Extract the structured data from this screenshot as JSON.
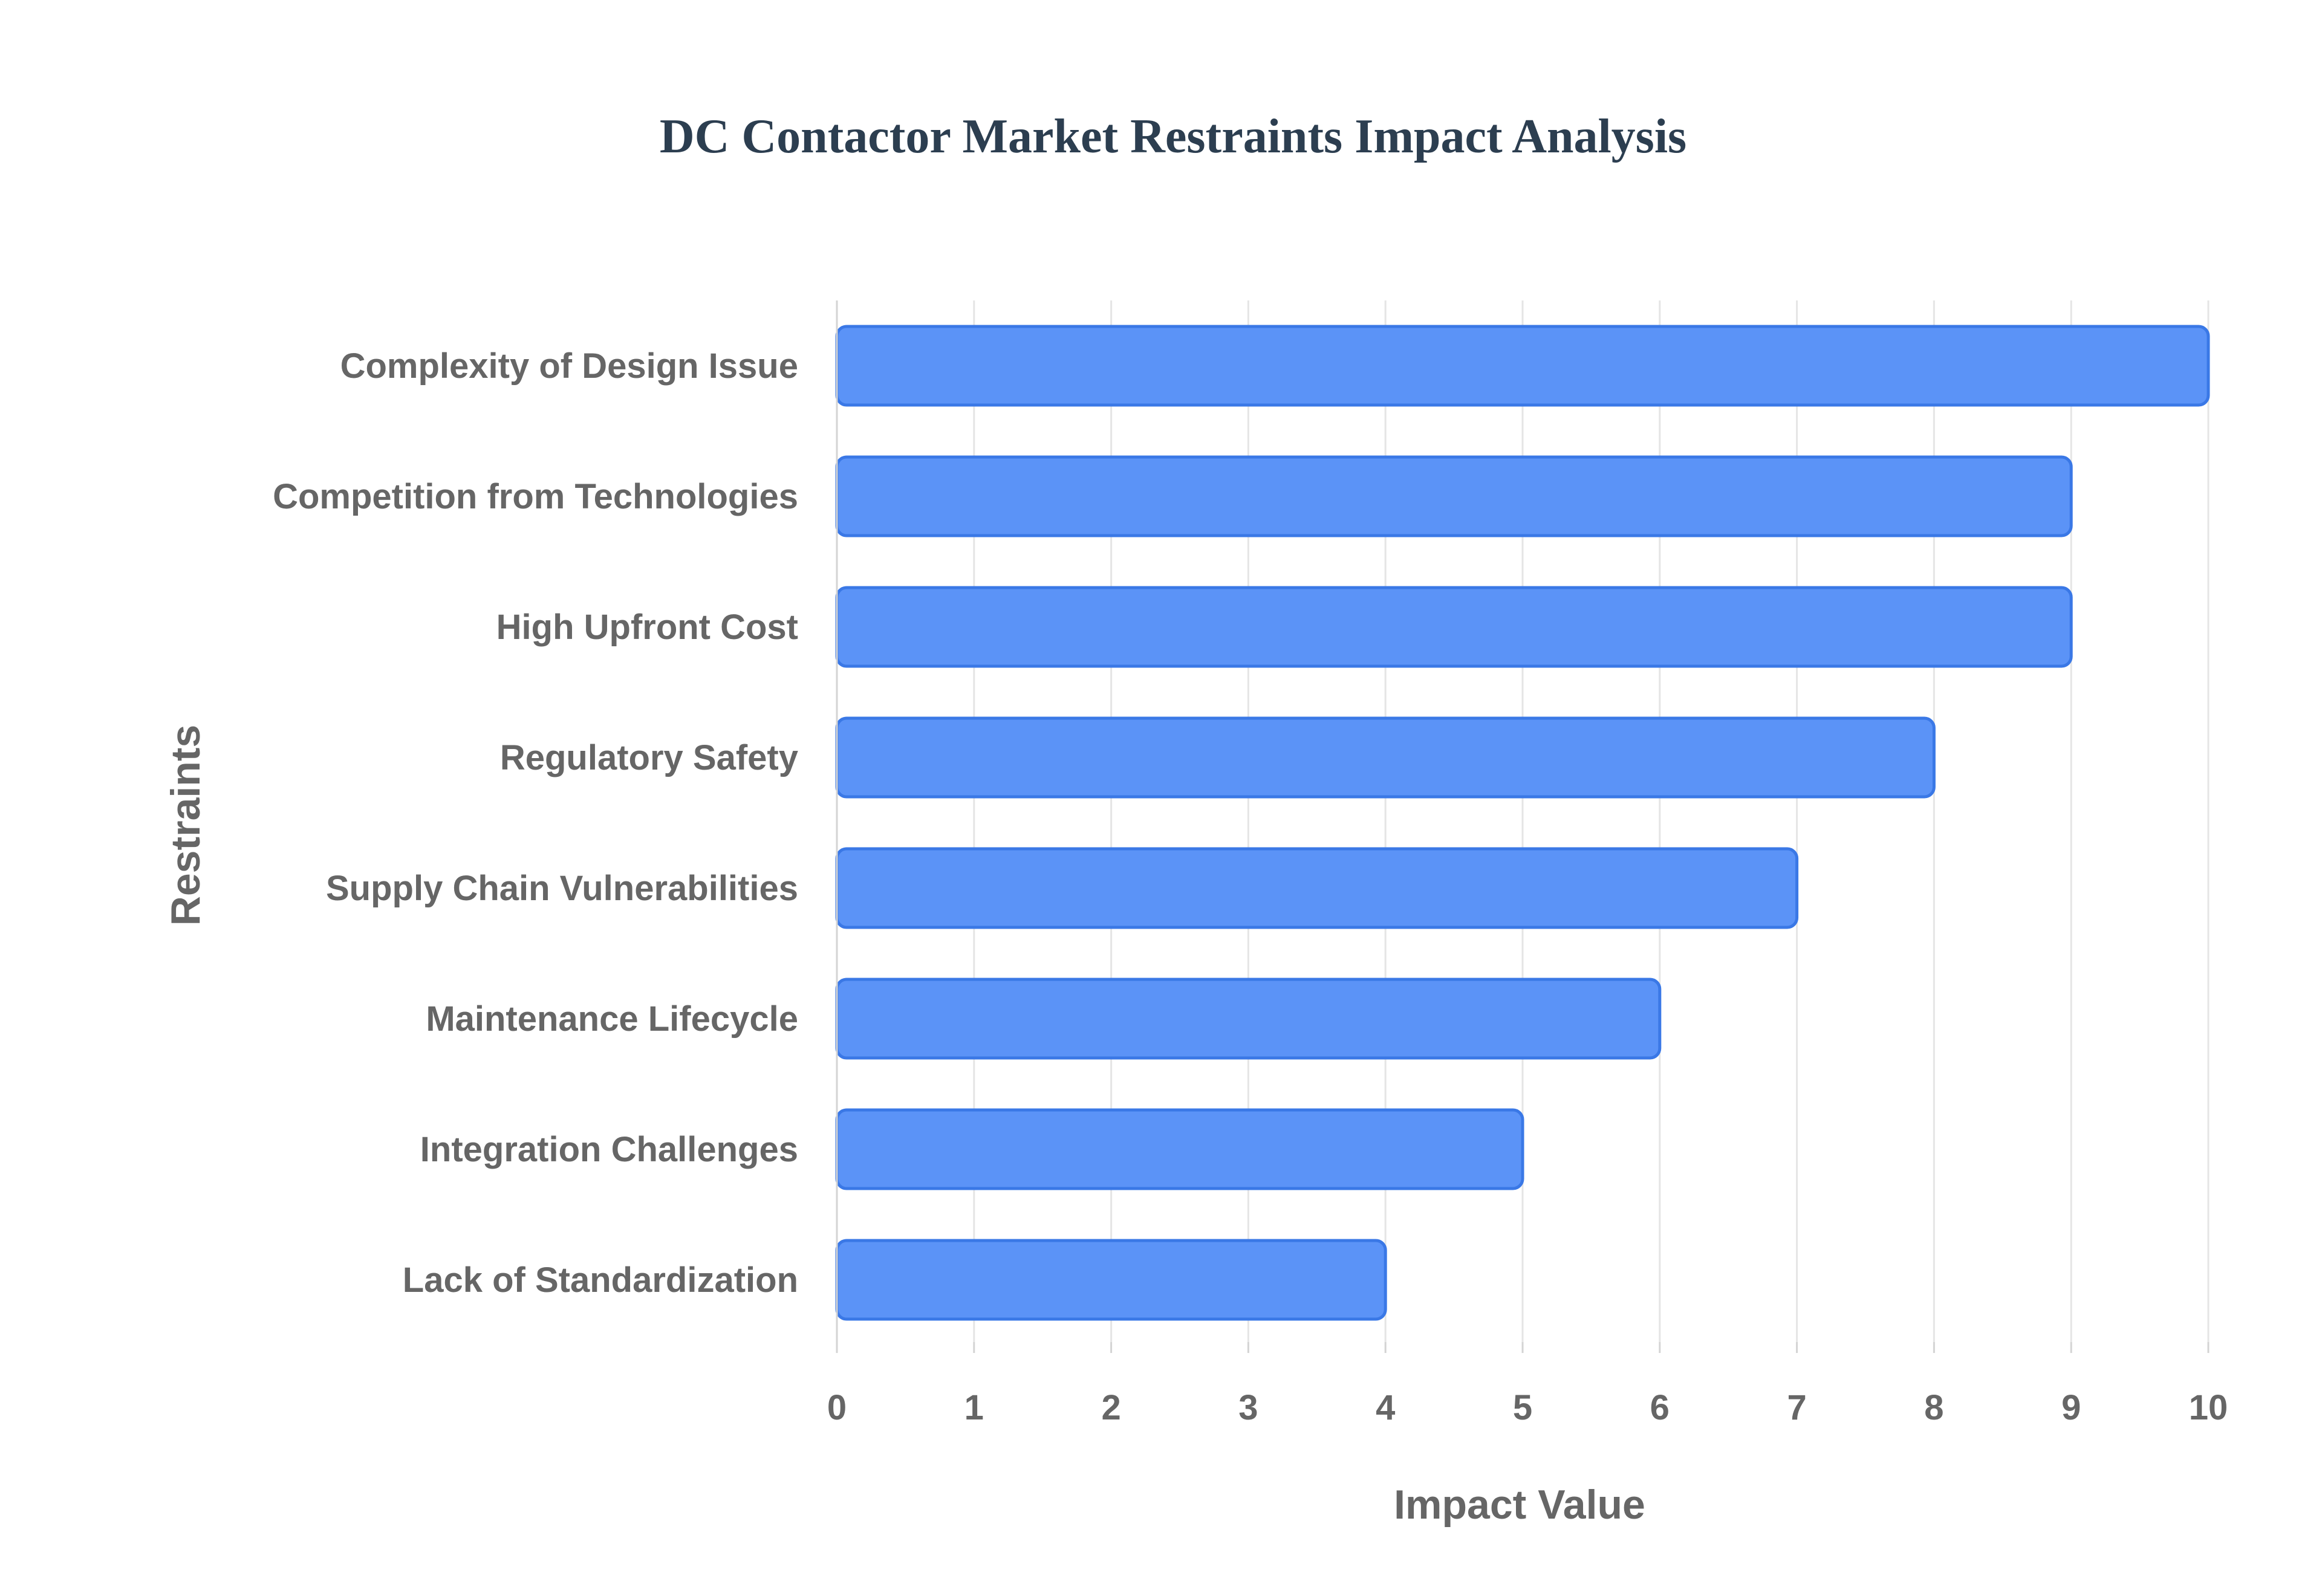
{
  "chart_data": {
    "type": "bar",
    "orientation": "horizontal",
    "title": "DC Contactor Market Restraints Impact Analysis",
    "xlabel": "Impact Value",
    "ylabel": "Restraints",
    "categories": [
      "Complexity of Design Issue",
      "Competition from Technologies",
      "High Upfront Cost",
      "Regulatory Safety",
      "Supply Chain Vulnerabilities",
      "Maintenance Lifecycle",
      "Integration Challenges",
      "Lack of Standardization"
    ],
    "values": [
      10,
      9,
      9,
      8,
      7,
      6,
      5,
      4
    ],
    "xlim": [
      0,
      10
    ],
    "xticks": [
      "0",
      "1",
      "2",
      "3",
      "4",
      "5",
      "6",
      "7",
      "8",
      "9",
      "10"
    ],
    "grid": true,
    "legend": "none",
    "colors": {
      "bar_fill": "#5b93f7",
      "bar_stroke": "#3a78e6",
      "grid": "#e5e5e5",
      "axis": "#d4d4d4",
      "label_text": "#666666",
      "title_text": "#2c3e50"
    }
  }
}
